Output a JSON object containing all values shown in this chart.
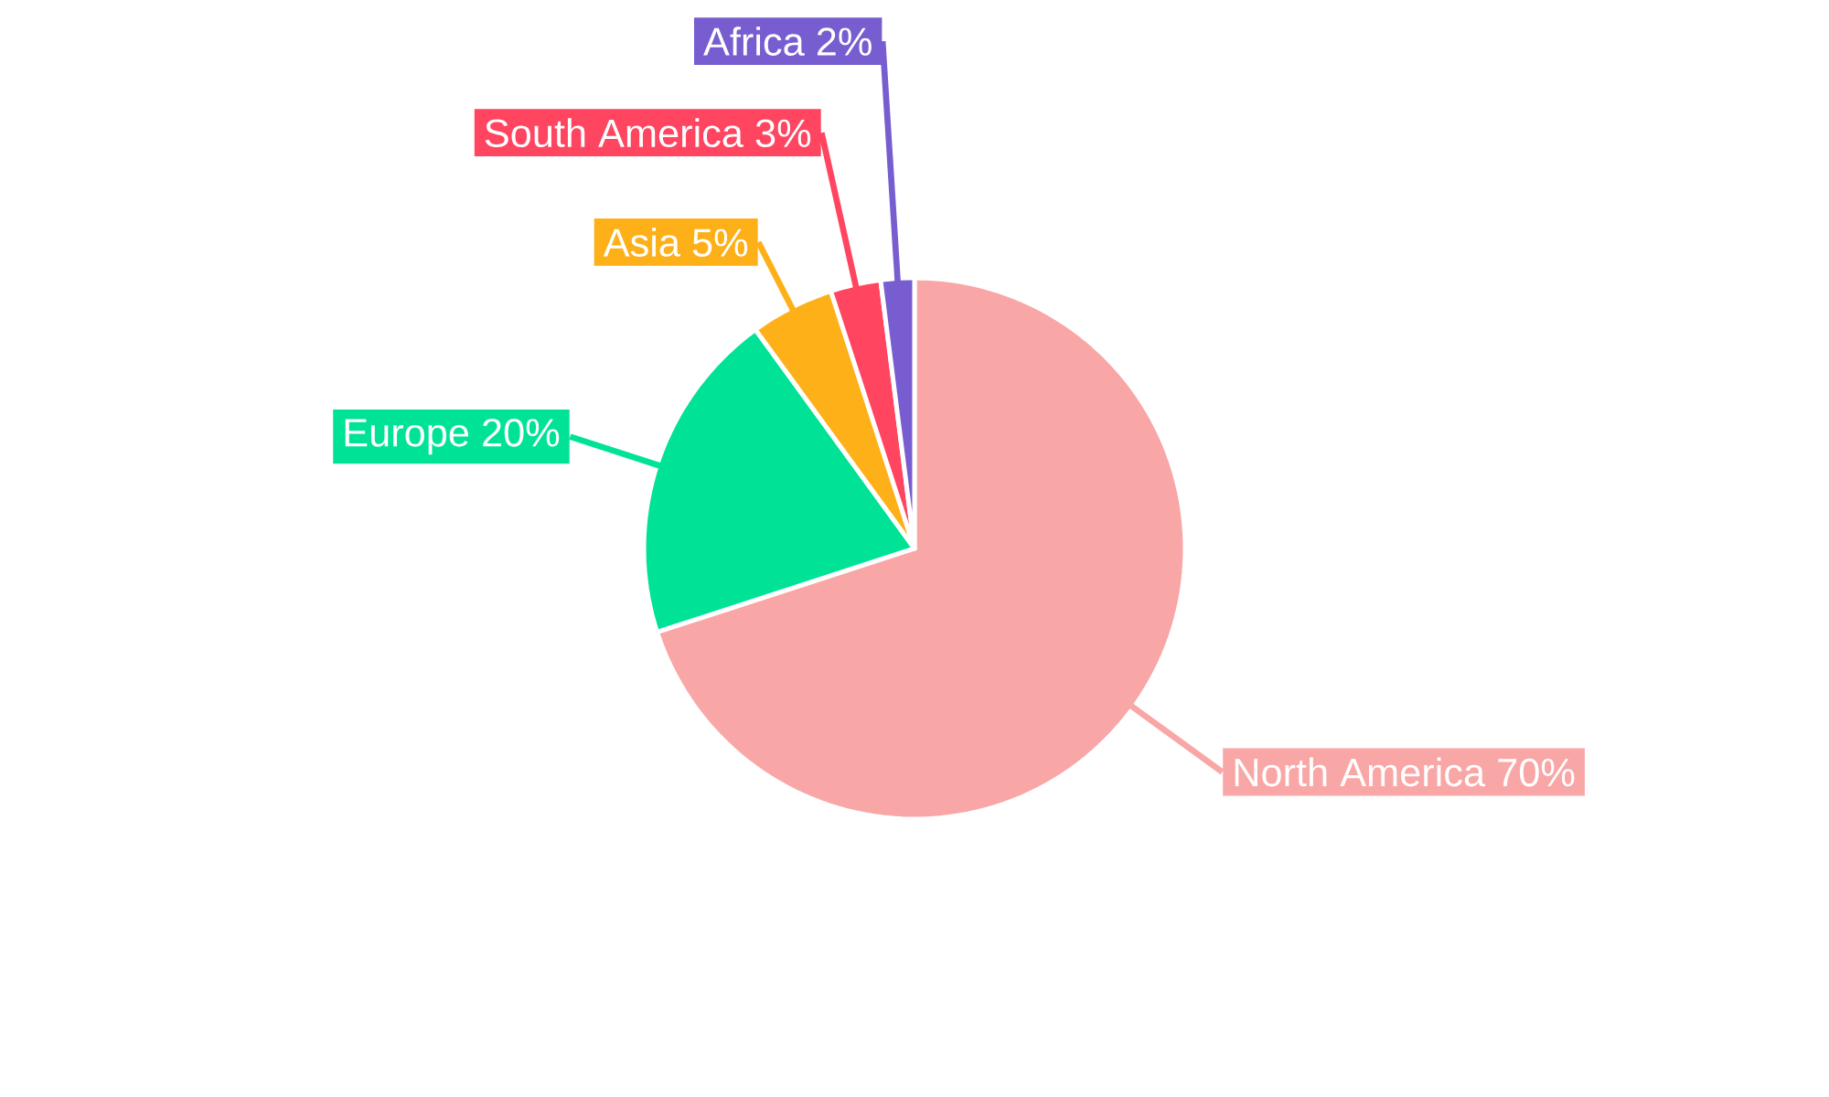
{
  "chart_data": {
    "type": "pie",
    "categories": [
      "North America",
      "Europe",
      "Asia",
      "South America",
      "Africa"
    ],
    "values": [
      70,
      20,
      5,
      3,
      2
    ],
    "colors": [
      "#f9a6a6",
      "#00e396",
      "#feb019",
      "#ff4560",
      "#775dd0"
    ],
    "value_labels": [
      "70%",
      "20%",
      "5%",
      "3%",
      "2%"
    ]
  }
}
